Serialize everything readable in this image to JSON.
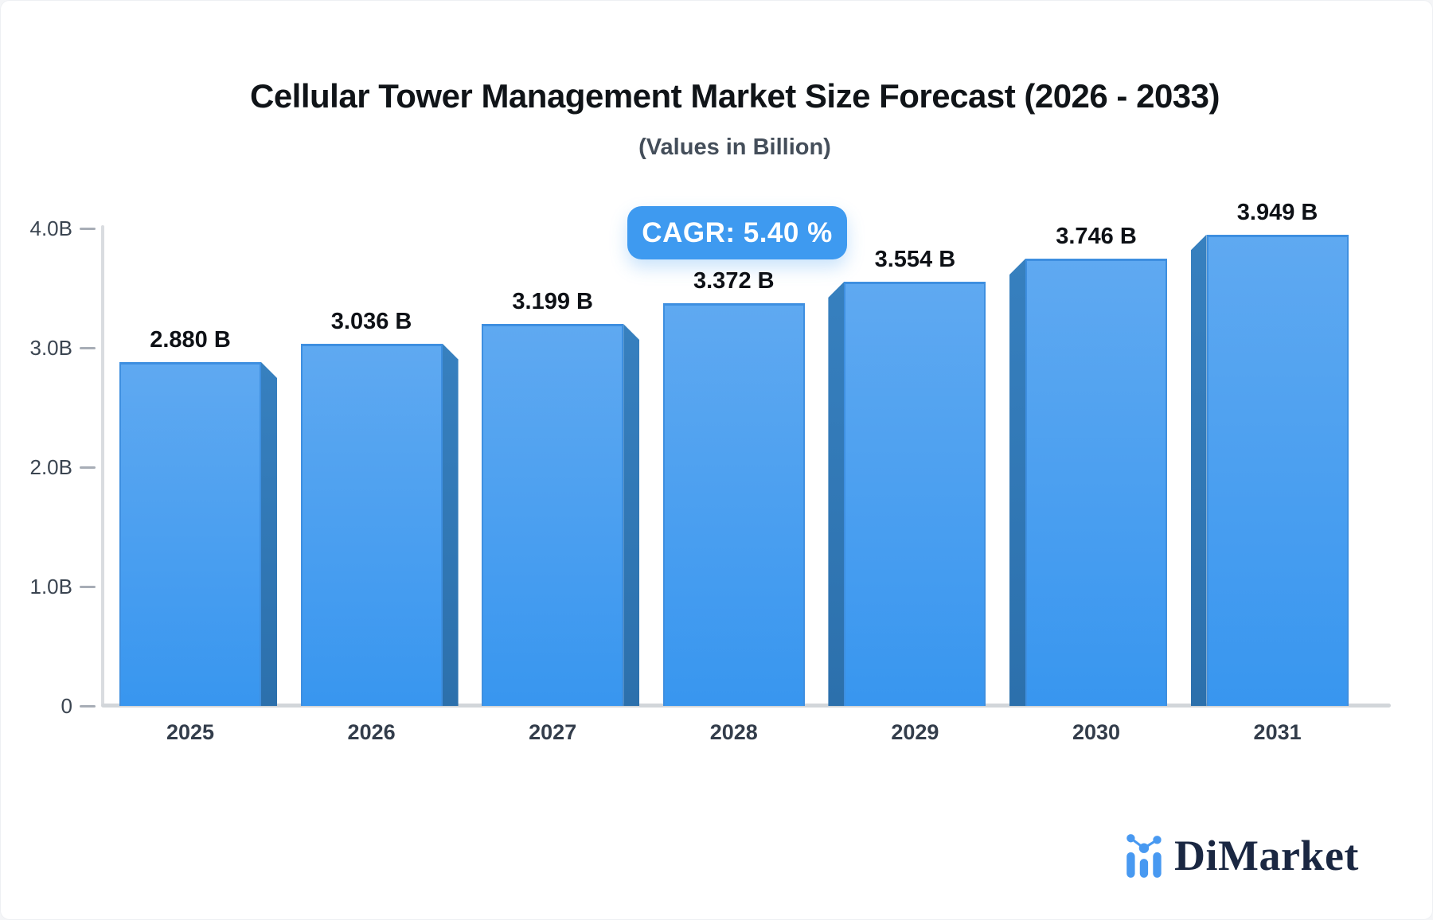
{
  "header": {
    "title": "Cellular Tower Management Market Size Forecast (2026 - 2033)",
    "subtitle": "(Values in Billion)"
  },
  "badge": {
    "label": "CAGR: 5.40 %"
  },
  "chart_data": {
    "type": "bar",
    "title": "Cellular Tower Management Market Size Forecast (2026 - 2033)",
    "subtitle": "(Values in Billion)",
    "categories": [
      "2025",
      "2026",
      "2027",
      "2028",
      "2029",
      "2030",
      "2031"
    ],
    "values": [
      2.88,
      3.036,
      3.199,
      3.372,
      3.554,
      3.746,
      3.949
    ],
    "bar_labels": [
      "2.880 B",
      "3.036 B",
      "3.199 B",
      "3.372 B",
      "3.554 B",
      "3.746 B",
      "3.949 B"
    ],
    "yticks": [
      {
        "label": "0",
        "value": 0
      },
      {
        "label": "1.0B",
        "value": 1
      },
      {
        "label": "2.0B",
        "value": 2
      },
      {
        "label": "3.0B",
        "value": 3
      },
      {
        "label": "4.0B",
        "value": 4
      }
    ],
    "ylim": [
      0,
      4.0
    ],
    "grid": false,
    "legend": false,
    "annotation": "CAGR: 5.40 %",
    "bar_style": "3d-perspective-center"
  },
  "footer": {
    "brand": "DiMarket",
    "logo_icon": "mini-bar-line-chart-icon"
  },
  "colors": {
    "bar_face_top": "#5fa9f1",
    "bar_face_bottom": "#3896ef",
    "bar_edge": "#3e8fe0",
    "bar_side_top": "#3780bf",
    "bar_side_bottom": "#2c70ac",
    "badge_bg": "#3e9af0",
    "badge_text": "#ffffff",
    "axis_line": "#d9dce0",
    "baseline": "#d2d6da",
    "tick_dash": "#a7adb6",
    "text_dark": "#101418",
    "text_gray": "#444e5a",
    "value_label": "#0e1116",
    "year_label": "#333d4b",
    "ytick_label": "#3a4450",
    "logo_blue": "#4899f1",
    "logo_navy": "#1a2742"
  }
}
